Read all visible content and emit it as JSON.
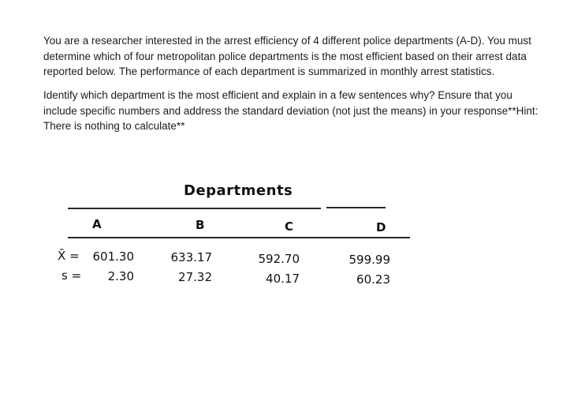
{
  "document": {
    "paragraph1": "You are a researcher interested in the arrest efficiency of 4 different police departments (A-D). You must determine which of four metropolitan police departments is the most efficient based on their arrest data reported below. The performance of each department is summarized in monthly arrest statistics.",
    "paragraph2": "Identify which department is the most efficient and explain in a few sentences why? Ensure that you include specific numbers and address the standard deviation (not just the means) in your response**Hint: There is nothing to calculate**"
  },
  "table": {
    "title": "Departments",
    "columns": [
      "A",
      "B",
      "C",
      "D"
    ],
    "mean_label": "X̄ =",
    "sd_label": "s =",
    "means": [
      "601.30",
      "633.17",
      "592.70",
      "599.99"
    ],
    "sds": [
      "2.30",
      "27.32",
      "40.17",
      "60.23"
    ]
  },
  "chart_data": {
    "type": "table",
    "title": "Departments",
    "columns": [
      "A",
      "B",
      "C",
      "D"
    ],
    "rows": [
      {
        "label": "X̄ (mean)",
        "values": [
          601.3,
          633.17,
          592.7,
          599.99
        ]
      },
      {
        "label": "s (standard deviation)",
        "values": [
          2.3,
          27.32,
          40.17,
          60.23
        ]
      }
    ]
  }
}
